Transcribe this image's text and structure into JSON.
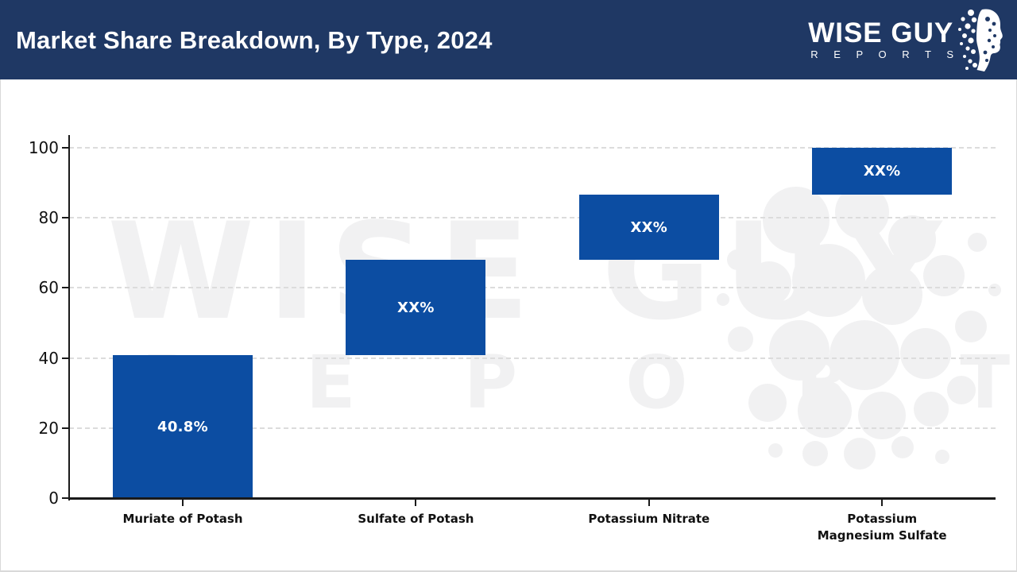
{
  "header": {
    "title": "Market Share Breakdown, By Type, 2024",
    "bg_color": "#1f3864",
    "logo": {
      "line1": "WISE GUY",
      "line2": "R E P O R T S"
    }
  },
  "watermark": {
    "line1": "WISE GUY",
    "line2": "R E P O R T S"
  },
  "chart_data": {
    "type": "bar",
    "subtype": "waterfall",
    "title": "Market Share Breakdown, By Type, 2024",
    "categories": [
      "Muriate of Potash",
      "Sulfate of Potash",
      "Potassium Nitrate",
      "Potassium Magnesium Sulfate"
    ],
    "segments": [
      {
        "category": "Muriate of Potash",
        "category_lines": [
          "Muriate of Potash"
        ],
        "start": 0,
        "end": 40.8,
        "label": "40.8%"
      },
      {
        "category": "Sulfate of Potash",
        "category_lines": [
          "Sulfate of Potash"
        ],
        "start": 40.8,
        "end": 68,
        "label": "XX%"
      },
      {
        "category": "Potassium Nitrate",
        "category_lines": [
          "Potassium Nitrate"
        ],
        "start": 68,
        "end": 86.6,
        "label": "XX%"
      },
      {
        "category": "Potassium Magnesium Sulfate",
        "category_lines": [
          "Potassium",
          "Magnesium Sulfate"
        ],
        "start": 86.6,
        "end": 100,
        "label": "XX%"
      }
    ],
    "xlabel": "",
    "ylabel": "",
    "ylim": [
      0,
      100
    ],
    "yticks": [
      0,
      20,
      40,
      60,
      80,
      100
    ],
    "grid": "horizontal-dashed",
    "legend": "none",
    "bar_color": "#0c4da2",
    "bar_label_color": "#ffffff",
    "axis_color": "#1a1a1a",
    "grid_color": "#dcdcdc",
    "tick_label_color": "#111111"
  }
}
